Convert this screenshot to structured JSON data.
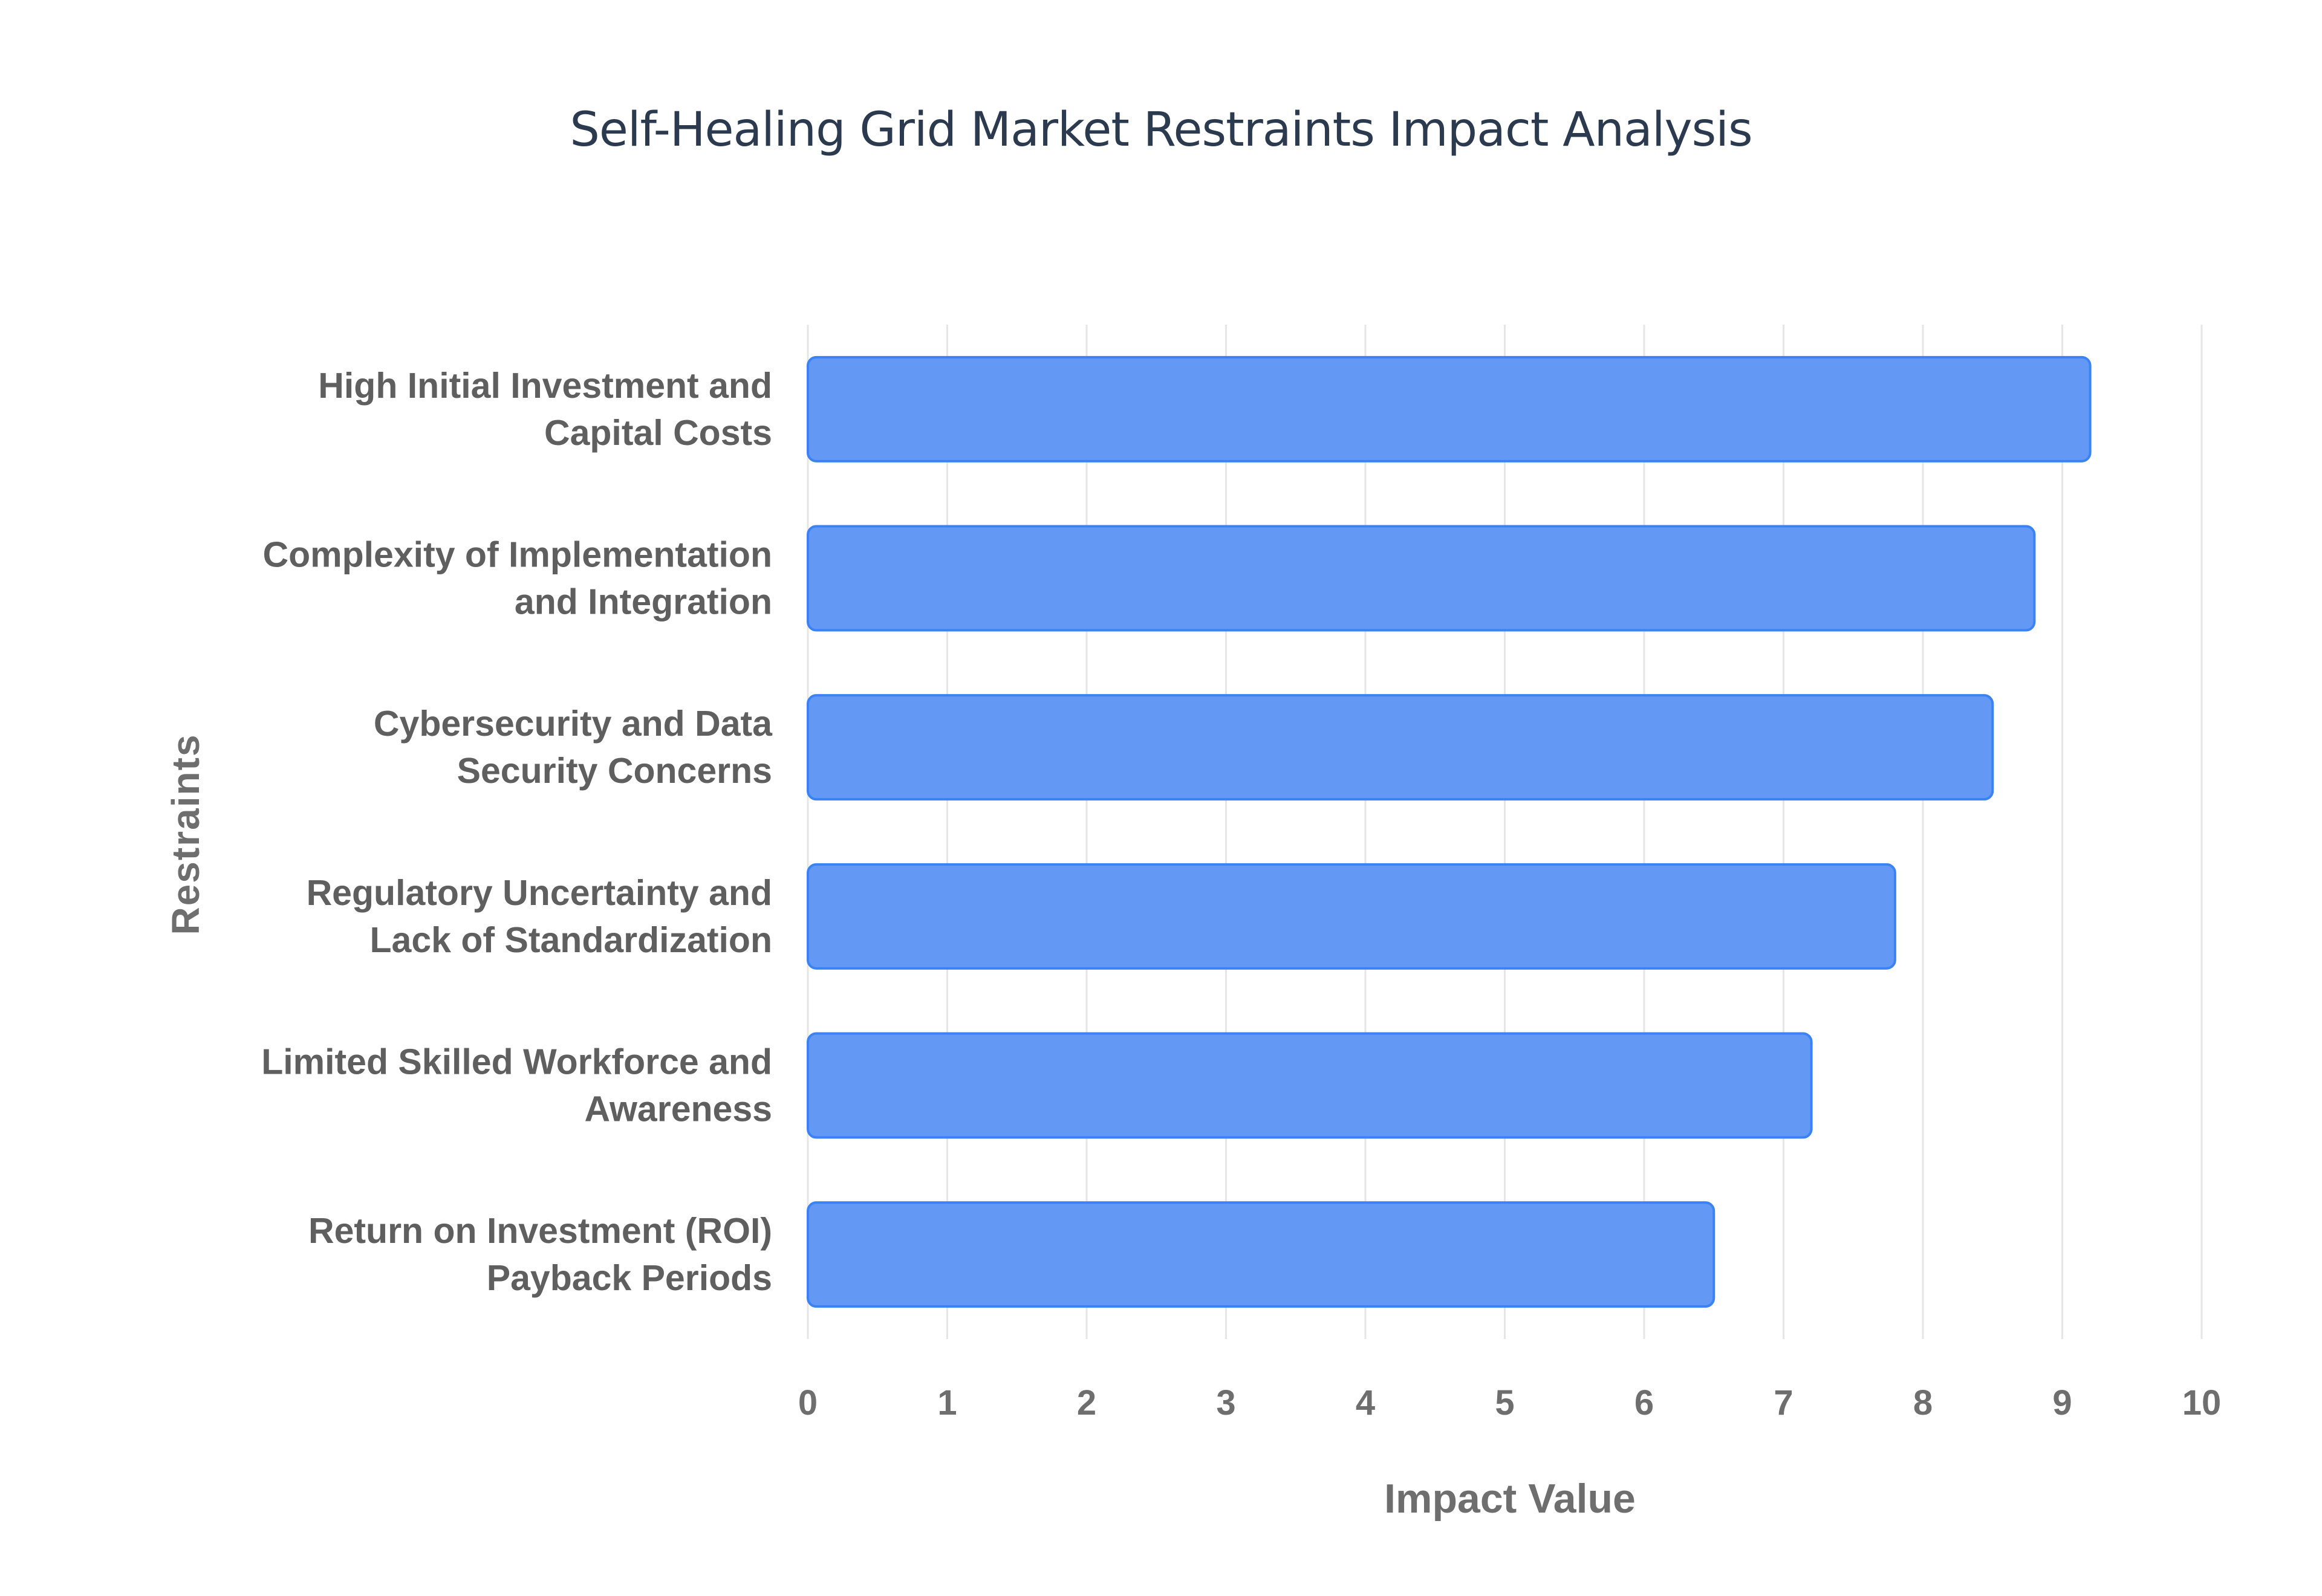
{
  "chart_data": {
    "type": "bar",
    "orientation": "horizontal",
    "title": "Self-Healing Grid Market Restraints Impact Analysis",
    "xlabel": "Impact Value",
    "ylabel": "Restraints",
    "categories": [
      [
        "High Initial Investment and",
        "Capital Costs"
      ],
      [
        "Complexity of Implementation",
        "and Integration"
      ],
      [
        "Cybersecurity and Data",
        "Security Concerns"
      ],
      [
        "Regulatory Uncertainty and",
        "Lack of Standardization"
      ],
      [
        "Limited Skilled Workforce and",
        "Awareness"
      ],
      [
        "Return on Investment (ROI)",
        "Payback Periods"
      ]
    ],
    "values": [
      9.2,
      8.8,
      8.5,
      7.8,
      7.2,
      6.5
    ],
    "xlim": [
      0,
      10
    ],
    "xticks": [
      "0",
      "1",
      "2",
      "3",
      "4",
      "5",
      "6",
      "7",
      "8",
      "9",
      "10"
    ],
    "grid": true,
    "bar_color": "#6399f5",
    "bar_border_color": "#3b82f6",
    "grid_color": "#e6e6e6"
  }
}
